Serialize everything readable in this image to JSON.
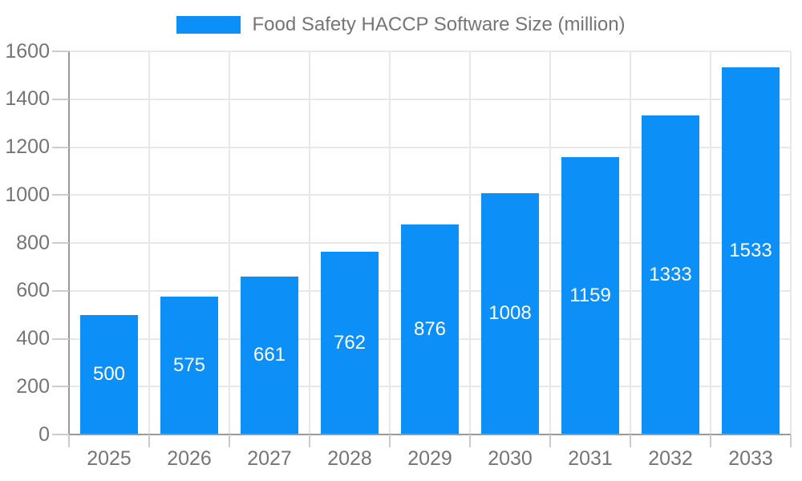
{
  "legend": {
    "label": "Food Safety HACCP Software Size (million)"
  },
  "chart_data": {
    "type": "bar",
    "title": "Food Safety HACCP Software Size (million)",
    "categories": [
      "2025",
      "2026",
      "2027",
      "2028",
      "2029",
      "2030",
      "2031",
      "2032",
      "2033"
    ],
    "values": [
      500,
      575,
      661,
      762,
      876,
      1008,
      1159,
      1333,
      1533
    ],
    "xlabel": "",
    "ylabel": "",
    "ylim": [
      0,
      1600
    ],
    "yticks": [
      0,
      200,
      400,
      600,
      800,
      1000,
      1200,
      1400,
      1600
    ],
    "grid": "both",
    "legend_position": "top",
    "value_labels": "inside-center"
  },
  "colors": {
    "bar": "#0d8ff8",
    "value_label": "#ffffff",
    "grid": "#e8e8e8",
    "axis": "#999999",
    "tick": "#cccccc",
    "label": "#757575"
  }
}
